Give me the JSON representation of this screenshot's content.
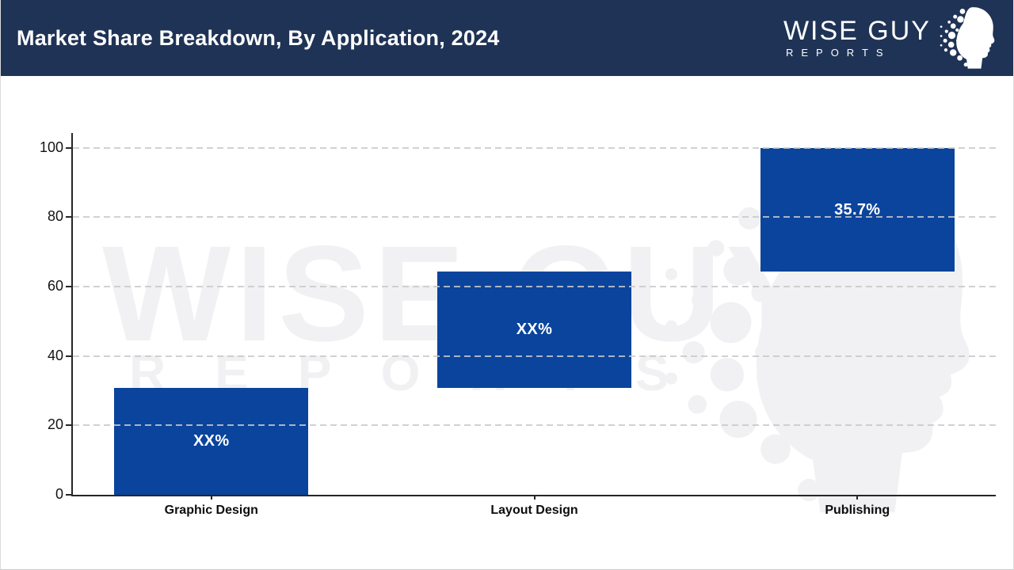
{
  "header": {
    "title": "Market Share Breakdown, By Application, 2024",
    "bg_color": "#1f3356",
    "logo": {
      "line1": "WISE GUY",
      "line2": "REPORTS"
    }
  },
  "watermark": {
    "line1": "WISE GUY",
    "line2": "REPORTS"
  },
  "chart_data": {
    "type": "bar",
    "subtype": "floating-stacked-percentage",
    "title": "Market Share Breakdown, By Application, 2024",
    "categories": [
      "Graphic Design",
      "Layout Design",
      "Publishing"
    ],
    "segments": [
      {
        "category": "Graphic Design",
        "start": 0,
        "end": 30.8,
        "label": "XX%"
      },
      {
        "category": "Layout Design",
        "start": 30.8,
        "end": 64.3,
        "label": "XX%"
      },
      {
        "category": "Publishing",
        "start": 64.3,
        "end": 100,
        "label": "35.7%"
      }
    ],
    "yticks": [
      0,
      20,
      40,
      60,
      80,
      100
    ],
    "ylim": [
      0,
      104.3
    ],
    "xlabel": "",
    "ylabel": "",
    "grid": "dashed-horizontal",
    "legend": "none",
    "bar_color": "#0a449c",
    "bar_label_color": "#ffffff",
    "layout": {
      "bar_centers_pct": [
        15,
        50,
        85
      ],
      "bar_width_pct": 21
    }
  }
}
